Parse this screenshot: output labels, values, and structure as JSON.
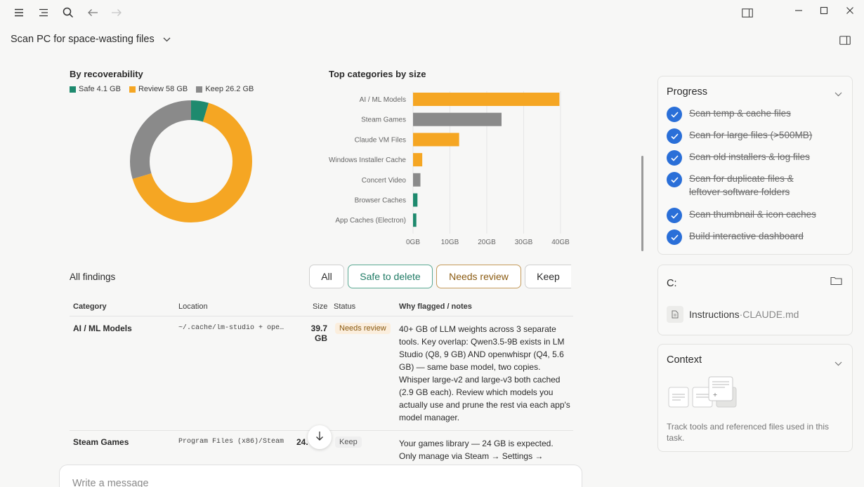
{
  "app": {
    "title": "Scan PC for space-wasting files"
  },
  "recoverability": {
    "title": "By recoverability",
    "legend": [
      {
        "label": "Safe 4.1 GB",
        "color": "#1e8a6e"
      },
      {
        "label": "Review 58 GB",
        "color": "#f5a623"
      },
      {
        "label": "Keep 26.2 GB",
        "color": "#8a8a8a"
      }
    ]
  },
  "categories_chart_title": "Top categories by size",
  "chart_data": [
    {
      "type": "pie",
      "title": "By recoverability",
      "labels": [
        "Safe",
        "Review",
        "Keep"
      ],
      "values": [
        4.1,
        58,
        26.2
      ],
      "colors": [
        "#1e8a6e",
        "#f5a623",
        "#8a8a8a"
      ]
    },
    {
      "type": "bar",
      "title": "Top categories by size",
      "categories": [
        "AI / ML Models",
        "Steam Games",
        "Claude VM Files",
        "Windows Installer Cache",
        "Concert Video",
        "Browser Caches",
        "App Caches (Electron)"
      ],
      "values": [
        39.7,
        24,
        12.5,
        2.5,
        2,
        1.2,
        0.9
      ],
      "colors": [
        "#f5a623",
        "#8a8a8a",
        "#f5a623",
        "#f5a623",
        "#8a8a8a",
        "#1e8a6e",
        "#1e8a6e"
      ],
      "xticks": [
        "0GB",
        "10GB",
        "20GB",
        "30GB",
        "40GB"
      ],
      "xlim": [
        0,
        40
      ],
      "grid": true
    }
  ],
  "findings": {
    "title": "All findings",
    "filters": [
      {
        "label": "All",
        "color": "#2b2b2b",
        "border": "#cfcfcf"
      },
      {
        "label": "Safe to delete",
        "color": "#1e7a64",
        "border": "#5aa893"
      },
      {
        "label": "Needs review",
        "color": "#8a5a10",
        "border": "#c49a5a"
      },
      {
        "label": "Keep",
        "color": "#2b2b2b",
        "border": "#cfcfcf"
      }
    ],
    "columns": [
      "Category",
      "Location",
      "Size",
      "Status",
      "Why flagged / notes"
    ],
    "rows": [
      {
        "category": "AI / ML Models",
        "location": "~/.cache/lm-studio + ope…",
        "size": "39.7 GB",
        "status": "Needs review",
        "notes": "40+ GB of LLM weights across 3 separate tools. Key overlap: Qwen3.5-9B exists in LM Studio (Q8, 9 GB) AND openwhispr (Q4, 5.6 GB) — same base model, two copies. Whisper large-v2 and large-v3 both cached (2.9 GB each). Review which models you actually use and prune the rest via each app's model manager."
      },
      {
        "category": "Steam Games",
        "location": "Program Files (x86)/Steam",
        "size": "24.",
        "status": "Keep",
        "notes": "Your games library — 24 GB is expected. Only manage via Steam → Settings →"
      }
    ]
  },
  "progress": {
    "title": "Progress",
    "tasks": [
      "Scan temp & cache files",
      "Scan for large files (>500MB)",
      "Scan old installers & log files",
      "Scan for duplicate files & leftover software folders",
      "Scan thumbnail & icon caches",
      "Build interactive dashboard"
    ]
  },
  "drive": {
    "title": "C:",
    "file_name": "Instructions",
    "file_sep": " · ",
    "file_path": "CLAUDE.md"
  },
  "context": {
    "title": "Context",
    "description": "Track tools and referenced files used in this task."
  },
  "composer": {
    "placeholder": "Write a message"
  }
}
